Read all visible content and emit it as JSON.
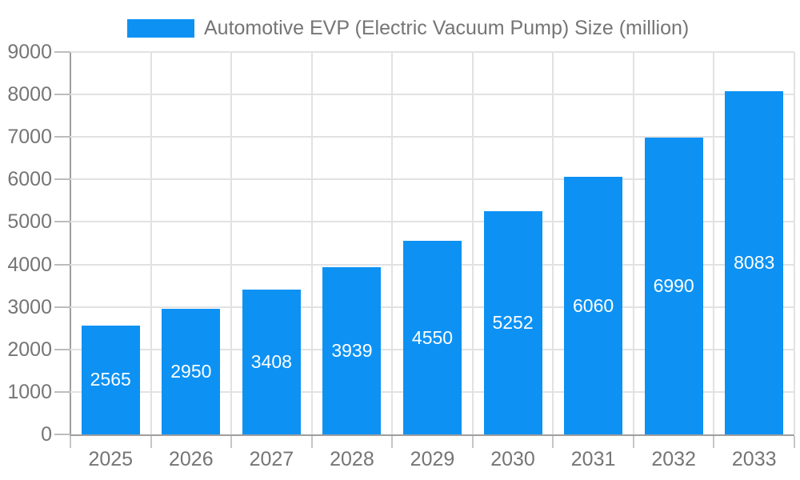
{
  "legend": {
    "label": "Automotive EVP (Electric Vacuum Pump) Size (million)"
  },
  "chart_data": {
    "type": "bar",
    "title": "Automotive EVP (Electric Vacuum Pump) Size (million)",
    "categories": [
      "2025",
      "2026",
      "2027",
      "2028",
      "2029",
      "2030",
      "2031",
      "2032",
      "2033"
    ],
    "values": [
      2565,
      2950,
      3408,
      3939,
      4550,
      5252,
      6060,
      6990,
      8083
    ],
    "xlabel": "",
    "ylabel": "",
    "ylim": [
      0,
      9000
    ],
    "ytick_step": 1000,
    "yticks": [
      0,
      1000,
      2000,
      3000,
      4000,
      5000,
      6000,
      7000,
      8000,
      9000
    ],
    "grid": true,
    "legend_position": "top",
    "bar_labels_inside": true,
    "colors": {
      "bar": "#0d92f4",
      "bar_label": "#ffffff",
      "axis": "#9e9e9e",
      "grid": "#e2e2e2",
      "text": "#757575",
      "background": "#ffffff"
    }
  }
}
